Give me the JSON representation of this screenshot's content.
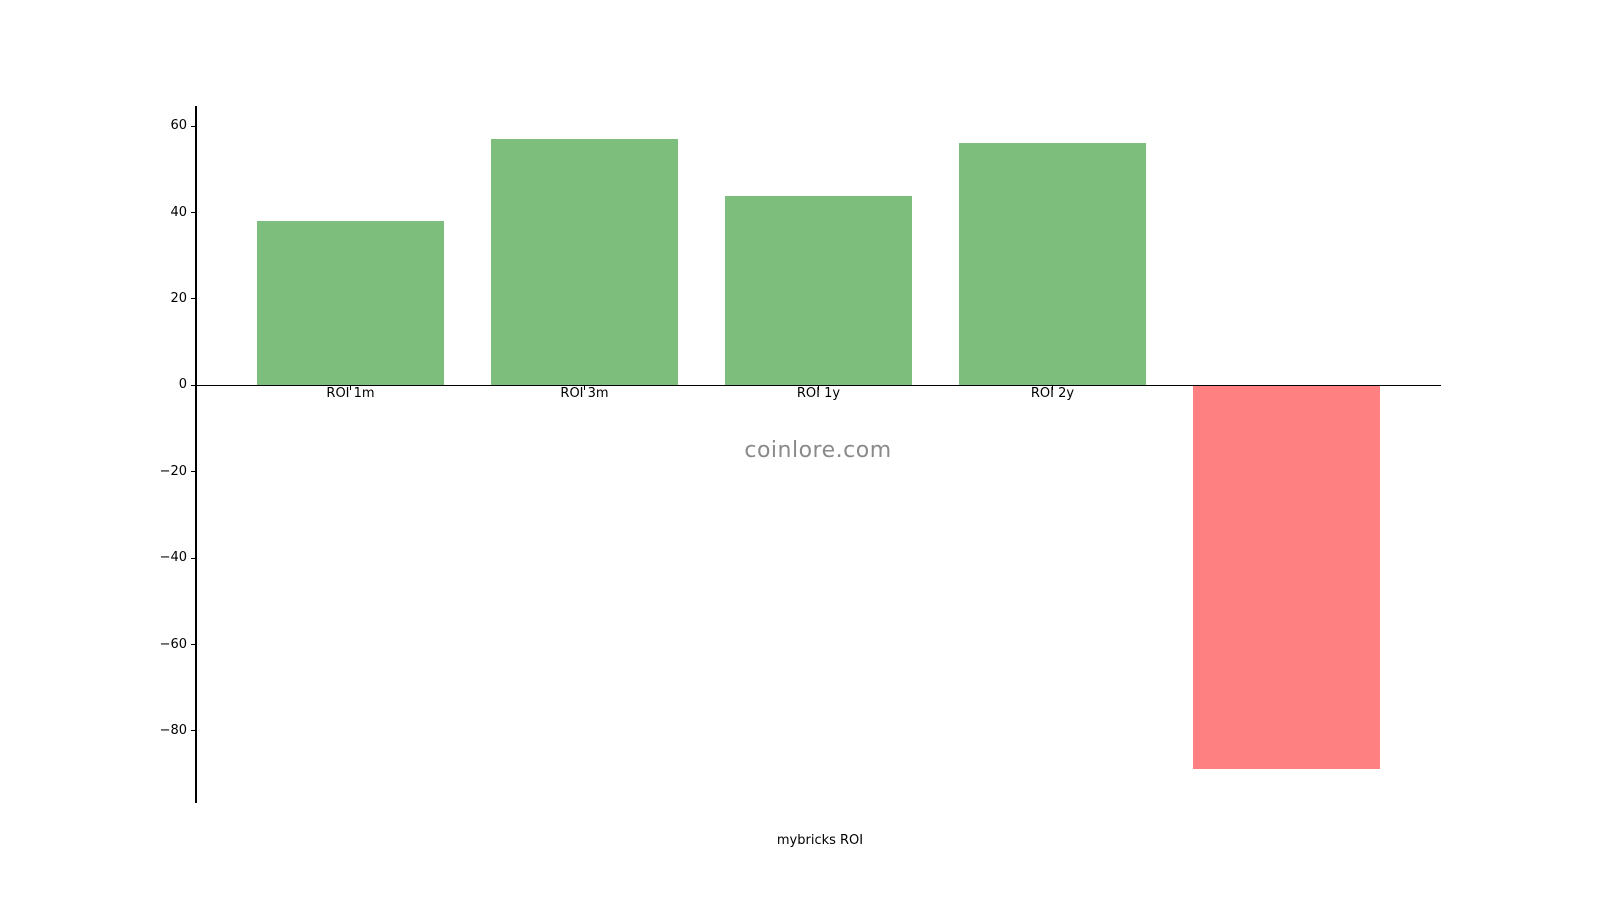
{
  "page": {
    "background": "#ffffff"
  },
  "chart_data": {
    "type": "bar",
    "title": "",
    "xlabel": "mybricks ROI",
    "ylabel": "",
    "watermark": "coinlore.com",
    "categories": [
      "ROI 1m",
      "ROI 3m",
      "ROI 1y",
      "ROI 2y",
      ""
    ],
    "values": [
      38.1,
      56.9,
      43.9,
      56.0,
      -88.9
    ],
    "series": [
      {
        "name": "mybricks ROI",
        "values": [
          38.1,
          56.9,
          43.9,
          56.0,
          -88.9
        ]
      }
    ],
    "bar_colors": [
      "#7dbe7d",
      "#7dbe7d",
      "#7dbe7d",
      "#7dbe7d",
      "#ff8080"
    ],
    "positive_color": "#7dbe7d",
    "negative_color": "#ff8080",
    "yticks": [
      60,
      40,
      20,
      0,
      -20,
      -40,
      -60,
      -80
    ],
    "ylim": [
      -96.7,
      64.6
    ],
    "grid": false,
    "legend_position": "none",
    "axis_color": "#000000",
    "tick_text_color": "#000000",
    "watermark_color": "#8a8a8a",
    "baseline_at_zero": true
  }
}
